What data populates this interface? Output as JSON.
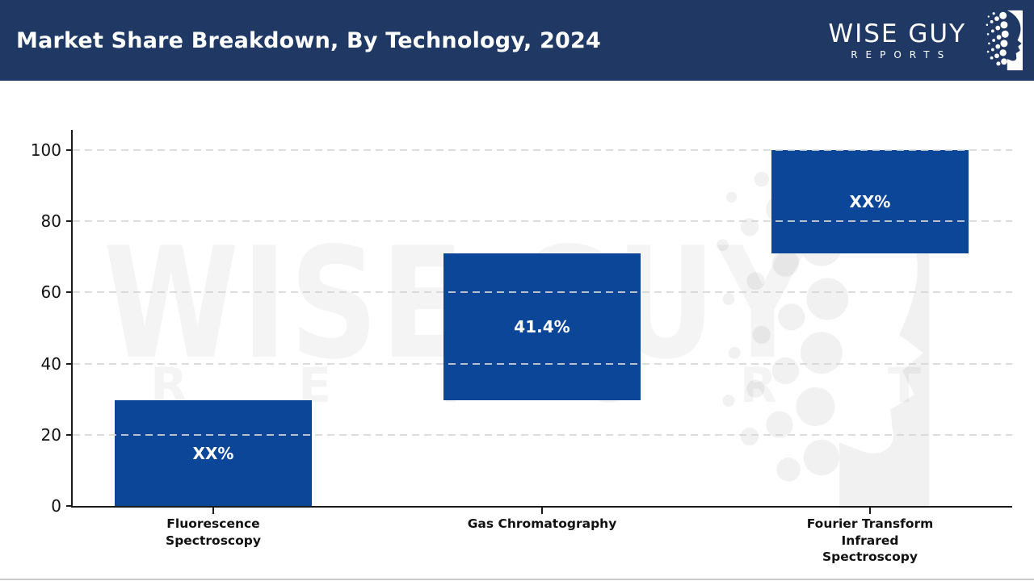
{
  "header": {
    "title": "Market Share Breakdown, By Technology, 2024",
    "background": "#1f3864",
    "logo": {
      "brand": "WISE GUY",
      "sub": "REPORTS"
    }
  },
  "watermark": {
    "brand": "WISE GUY",
    "sub": "R E P O R T S"
  },
  "chart_data": {
    "type": "bar",
    "subtype": "floating-segment-waterfall",
    "title": "Market Share Breakdown, By Technology, 2024",
    "categories": [
      "Fluorescence Spectroscopy",
      "Gas Chromatography",
      "Fourier Transform Infrared Spectroscopy"
    ],
    "category_label_lines": [
      [
        "Fluorescence",
        "Spectroscopy"
      ],
      [
        "Gas Chromatography"
      ],
      [
        "Fourier Transform",
        "Infrared",
        "Spectroscopy"
      ]
    ],
    "series": [
      {
        "name": "Market share (%)",
        "bars": [
          {
            "category": "Fluorescence Spectroscopy",
            "from": 0,
            "to": 29.6,
            "label": "XX%"
          },
          {
            "category": "Gas Chromatography",
            "from": 29.6,
            "to": 71,
            "label": "41.4%"
          },
          {
            "category": "Fourier Transform Infrared Spectroscopy",
            "from": 71,
            "to": 100,
            "label": "XX%"
          }
        ]
      }
    ],
    "xlabel": "",
    "ylabel": "",
    "ylim": [
      0,
      105.7
    ],
    "yticks": [
      0,
      20,
      40,
      60,
      80,
      100
    ],
    "grid": "dashed horizontal, drawn above bars",
    "legend": "none",
    "colors": {
      "bar": "#0b4699",
      "bar_label": "#ffffff",
      "grid": "#d6d6d6",
      "axis": "#1a1a1a",
      "header_bg": "#1f3864",
      "header_text": "#ffffff",
      "watermark": "#f3f3f3"
    }
  }
}
